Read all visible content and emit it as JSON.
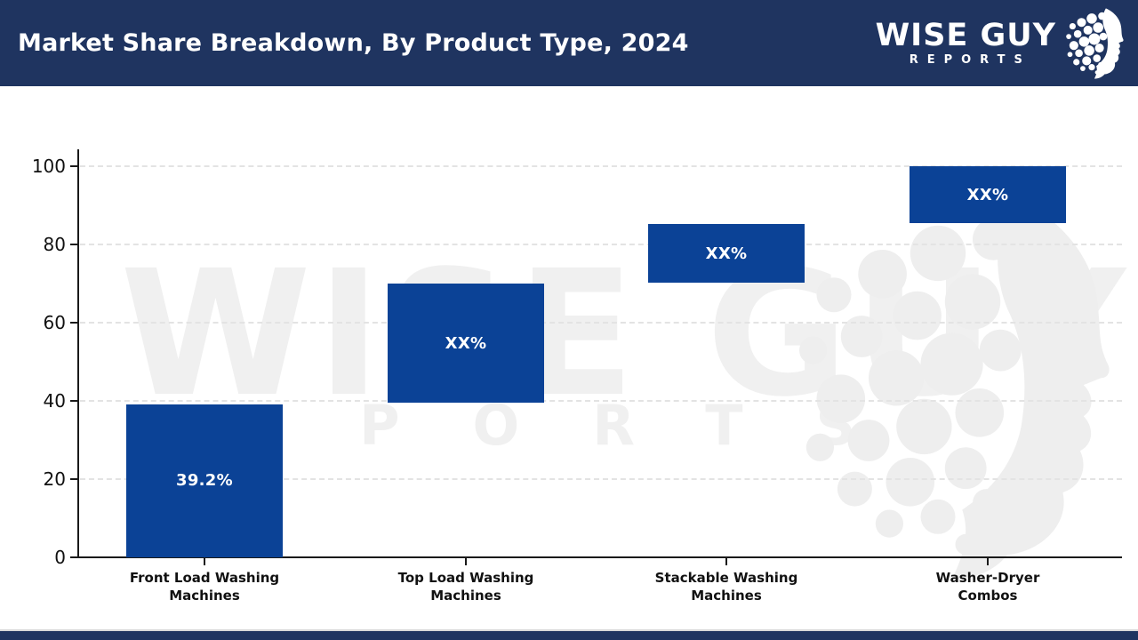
{
  "header": {
    "title": "Market Share Breakdown, By Product Type, 2024",
    "logo": {
      "line1": "WISE GUY",
      "line2": "REPORTS"
    }
  },
  "watermark": {
    "line1": "WISE GUY",
    "line2": "REPORTS"
  },
  "chart_data": {
    "type": "bar",
    "subtype": "waterfall",
    "title": "Market Share Breakdown, By Product Type, 2024",
    "categories": [
      "Front Load Washing Machines",
      "Top Load Washing Machines",
      "Stackable Washing Machines",
      "Washer-Dryer Combos"
    ],
    "bars": [
      {
        "category": "Front Load Washing Machines",
        "start": 0,
        "end": 39.2,
        "label": "39.2%"
      },
      {
        "category": "Top Load Washing Machines",
        "start": 39.5,
        "end": 70,
        "label": "XX%"
      },
      {
        "category": "Stackable Washing Machines",
        "start": 70.2,
        "end": 85.2,
        "label": "XX%"
      },
      {
        "category": "Washer-Dryer Combos",
        "start": 85.4,
        "end": 100,
        "label": "XX%"
      }
    ],
    "bar_color": "#0b4296",
    "bar_label_color": "#ffffff",
    "yticks": [
      0,
      20,
      40,
      60,
      80,
      100
    ],
    "ylim": [
      0,
      100
    ],
    "xlabel": "",
    "ylabel": "",
    "grid": "horizontal-dashed",
    "legend": "none"
  },
  "colors": {
    "header_bg": "#1f3460",
    "footer_bg": "#1f3460",
    "bar": "#0b4296",
    "gridline": "#e3e3e3",
    "axis": "#1a1a1a",
    "watermark": "#f0f0f0"
  }
}
